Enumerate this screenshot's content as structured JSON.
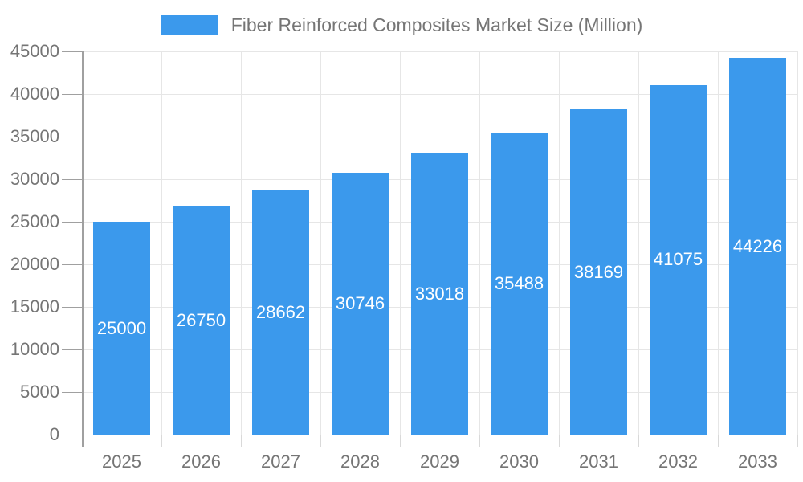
{
  "chart_data": {
    "type": "bar",
    "title": "Fiber Reinforced Composites Market Size (Million)",
    "categories": [
      "2025",
      "2026",
      "2027",
      "2028",
      "2029",
      "2030",
      "2031",
      "2032",
      "2033"
    ],
    "values": [
      25000,
      26750,
      28662,
      30746,
      33018,
      35488,
      38169,
      41075,
      44226
    ],
    "value_labels": [
      "25000",
      "26750",
      "28662",
      "30746",
      "33018",
      "35488",
      "38169",
      "41075",
      "44226"
    ],
    "xlabel": "",
    "ylabel": "",
    "ylim": [
      0,
      45000
    ],
    "ytick_step": 5000,
    "ytick_labels": [
      "0",
      "5000",
      "10000",
      "15000",
      "20000",
      "25000",
      "30000",
      "35000",
      "40000",
      "45000"
    ],
    "grid": true,
    "legend_position": "top",
    "colors": {
      "bar": "#3b99ec",
      "axis_text": "#757575",
      "grid_line": "#e6e6e6",
      "axis_line": "#a0a0a0",
      "minor_tick": "#d9d9d9",
      "value_label": "#ffffff",
      "background": "#ffffff"
    }
  }
}
